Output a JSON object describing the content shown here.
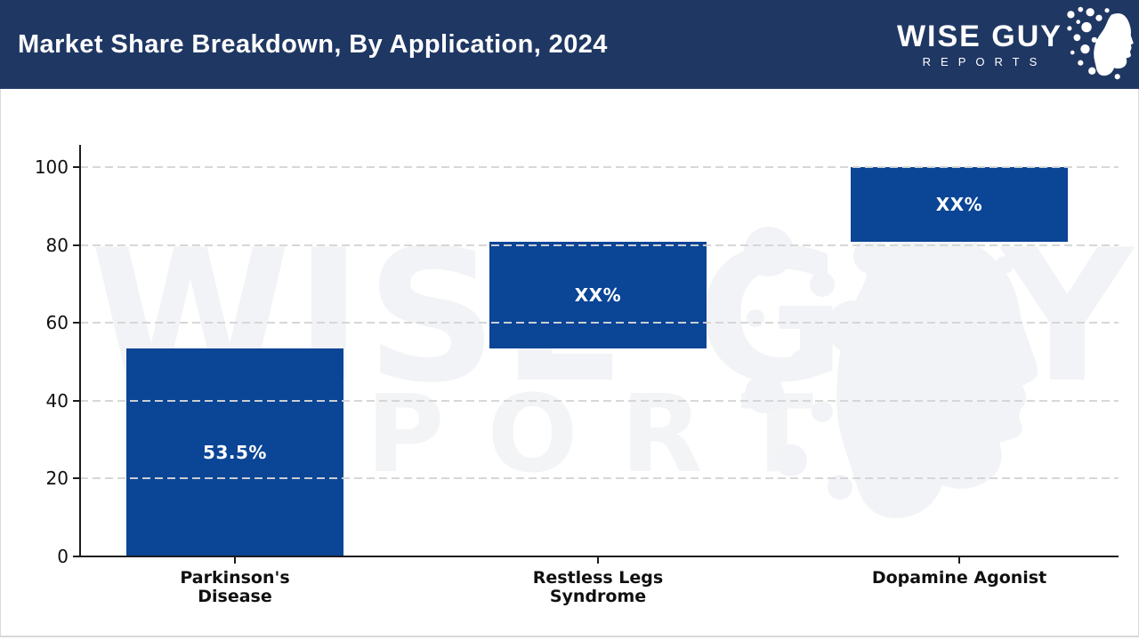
{
  "header": {
    "title": "Market Share Breakdown, By Application, 2024",
    "bg_color": "#1f3763",
    "logo": {
      "line1": "WISE GUY",
      "line2": "REPORTS"
    }
  },
  "watermark": {
    "line1": "WISE GUY",
    "line2": "REPORTS"
  },
  "chart_data": {
    "type": "bar",
    "subtype": "floating-waterfall",
    "title": "Market Share Breakdown, By Application, 2024",
    "categories": [
      "Parkinson's Disease",
      "Restless Legs Syndrome",
      "Dopamine Agonist"
    ],
    "x_tick_labels": [
      {
        "line1": "Parkinson's",
        "line2": "Disease"
      },
      {
        "line1": "Restless Legs",
        "line2": "Syndrome"
      },
      {
        "line1": "Dopamine Agonist",
        "line2": ""
      }
    ],
    "segments": [
      {
        "category": "Parkinson's Disease",
        "from": 0,
        "to": 53.5,
        "label": "53.5%"
      },
      {
        "category": "Restless Legs Syndrome",
        "from": 53.5,
        "to": 80.8,
        "label": "XX%"
      },
      {
        "category": "Dopamine Agonist",
        "from": 80.8,
        "to": 99.9,
        "label": "XX%"
      }
    ],
    "xlabel": "",
    "ylabel": "",
    "ylim": [
      0,
      100
    ],
    "yticks": [
      0,
      20,
      40,
      60,
      80,
      100
    ],
    "grid": {
      "axis": "y",
      "style": "dashed",
      "color": "#d5d5d5",
      "drawn_over_bars": true
    },
    "legend": "none",
    "bar_color": "#0a4596",
    "bar_label_color": "#ffffff",
    "axis_color": "#1c1c1c"
  },
  "colors": {
    "header_bg": "#1f3763",
    "bar_blue": "#0a4596",
    "card_border": "#d9d9d9",
    "watermark_gray": "#f2f3f6"
  }
}
